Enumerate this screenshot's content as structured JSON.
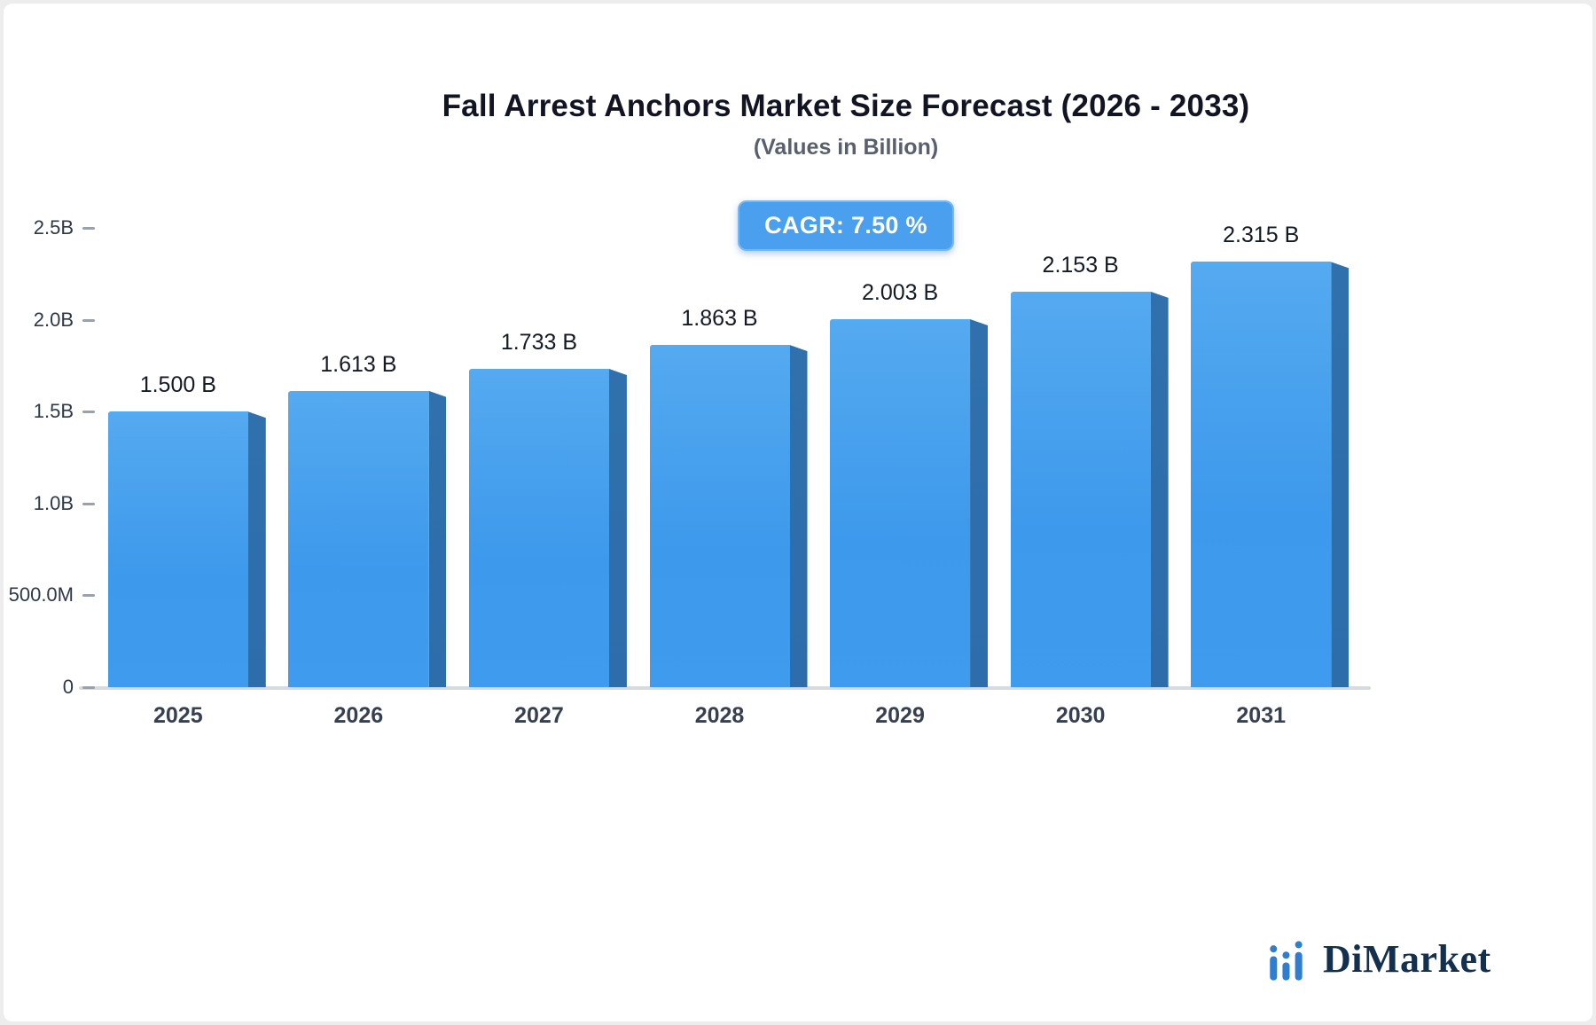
{
  "header": {
    "title": "Fall Arrest Anchors Market Size Forecast (2026 - 2033)",
    "subtitle": "(Values in Billion)"
  },
  "badge": {
    "label": "CAGR: 7.50 %",
    "background": "#4aa0ee",
    "text_color": "#ffffff"
  },
  "chart_data": {
    "type": "bar",
    "title": "Fall Arrest Anchors Market Size Forecast (2026 - 2033)",
    "subtitle": "(Values in Billion)",
    "categories": [
      "2025",
      "2026",
      "2027",
      "2028",
      "2029",
      "2030",
      "2031"
    ],
    "values": [
      1.5,
      1.613,
      1.733,
      1.863,
      2.003,
      2.153,
      2.315
    ],
    "value_labels": [
      "1.500 B",
      "1.613 B",
      "1.733 B",
      "1.863 B",
      "2.003 B",
      "2.153 B",
      "2.315 B"
    ],
    "unit": "Billion",
    "xlabel": "",
    "ylabel": "",
    "ylim": [
      0,
      2.5
    ],
    "grid": false,
    "legend": false,
    "y_ticks": [
      {
        "value": 0,
        "label": "0"
      },
      {
        "value": 0.5,
        "label": "500.0M"
      },
      {
        "value": 1.0,
        "label": "1.0B"
      },
      {
        "value": 1.5,
        "label": "1.5B"
      },
      {
        "value": 2.0,
        "label": "2.0B"
      },
      {
        "value": 2.5,
        "label": "2.5B"
      }
    ],
    "colors": {
      "bar_top": "#55aaf0",
      "bar_bottom": "#3d99ec",
      "bar_side": "#2d6dab",
      "axis_line": "#d7dade",
      "tick_text": "#2e3947",
      "label_text": "#131a24"
    }
  },
  "logo": {
    "text": "DiMarket",
    "icon": "bar-chart-icon",
    "icon_color": "#2e7dd1",
    "text_color": "#14304f"
  }
}
